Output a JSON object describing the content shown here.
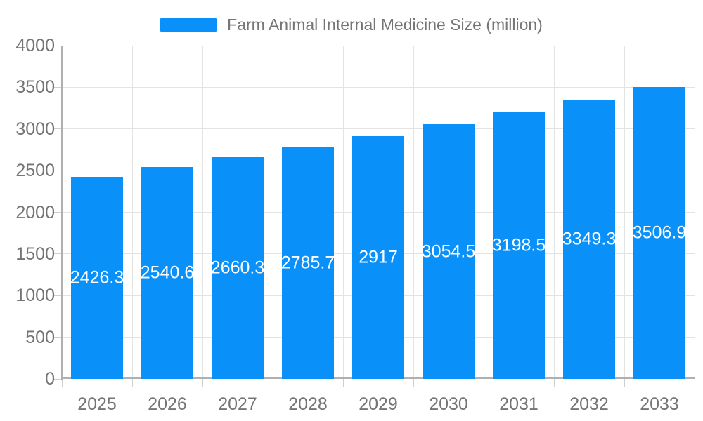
{
  "chart_data": {
    "type": "bar",
    "title": "Farm Animal Internal Medicine Size (million)",
    "categories": [
      "2025",
      "2026",
      "2027",
      "2028",
      "2029",
      "2030",
      "2031",
      "2032",
      "2033"
    ],
    "values": [
      2426.3,
      2540.6,
      2660.3,
      2785.7,
      2917,
      3054.5,
      3198.5,
      3349.3,
      3506.9
    ],
    "value_labels": [
      "2426.3",
      "2540.6",
      "2660.3",
      "2785.7",
      "2917",
      "3054.5",
      "3198.5",
      "3349.3",
      "3506.9"
    ],
    "xlabel": "",
    "ylabel": "",
    "ylim": [
      0,
      4000
    ],
    "ytick_step": 500,
    "ytick_labels": [
      "0",
      "500",
      "1000",
      "1500",
      "2000",
      "2500",
      "3000",
      "3500",
      "4000"
    ],
    "grid": true,
    "legend_position": "top",
    "colors": {
      "bar": "#0a90f9",
      "axis": "#b0b0b0",
      "grid": "#e3e3e3",
      "tick": "#cfcfcf",
      "text": "#757575",
      "value_label": "#ffffff",
      "background": "#ffffff"
    }
  }
}
